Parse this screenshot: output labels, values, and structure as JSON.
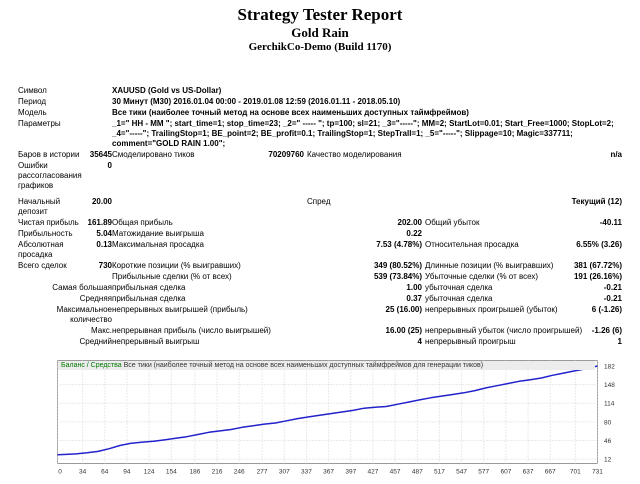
{
  "header": {
    "title": "Strategy Tester Report",
    "ea_name": "Gold Rain",
    "server": "GerchikCo-Demo (Build 1170)"
  },
  "info": {
    "rows": [
      {
        "label": "Символ",
        "value": "XAUUSD (Gold vs US-Dollar)"
      },
      {
        "label": "Период",
        "value": "30 Минут (M30) 2016.01.04 00:00 - 2019.01.08 12:59 (2016.01.11 - 2018.05.10)"
      },
      {
        "label": "Модель",
        "value": "Все тики (наиболее точный метод на основе всех наименьших доступных таймфреймов)"
      },
      {
        "label": "Параметры",
        "value": "_1=\" НН - ММ \"; start_time=1; stop_time=23; _2=\" ----- \"; tp=100; sl=21; _3=\"-----\"; MM=2; StartLot=0.01; Start_Free=1000; StopLot=2; _4=\"-----\"; TrailingStop=1; BE_point=2; BE_profit=0.1; TrailingStop=1; StepTrall=1; _5=\"-----\"; Slippage=10; Magic=337711; comment=\"GOLD RAIN 1.00\";"
      }
    ],
    "bars": {
      "label": "Баров в истории",
      "value": "35645"
    },
    "ticks": {
      "label": "Смоделировано тиков",
      "value": "70209760"
    },
    "quality": {
      "label": "Качество моделирования",
      "value": "n/a"
    },
    "errors": {
      "label": "Ошибки рассогласования графиков",
      "value": "0"
    }
  },
  "stats": {
    "rows": [
      {
        "l1": "Начальный депозит",
        "v1": "20.00",
        "l2": "",
        "v2": "",
        "l3": "Спред",
        "v3": "Текущий (12)"
      },
      {
        "l1": "Чистая прибыль",
        "v1": "161.89",
        "l2": "Общая прибыль",
        "v2": "202.00",
        "l3": "Общий убыток",
        "v3": "-40.11"
      },
      {
        "l1": "Прибыльность",
        "v1": "5.04",
        "l2": "Матожидание выигрыша",
        "v2": "0.22",
        "l3": "",
        "v3": ""
      },
      {
        "l1": "Абсолютная просадка",
        "v1": "0.13",
        "l2": "Максимальная просадка",
        "v2": "7.53 (4.78%)",
        "l3": "Относительная просадка",
        "v3": "6.55% (3.26)"
      },
      {
        "l1": "Всего сделок",
        "v1": "730",
        "l2": "Короткие позиции (% выигравших)",
        "v2": "349 (80.52%)",
        "l3": "Длинные позиции (% выигравших)",
        "v3": "381 (67.72%)"
      },
      {
        "l1": "",
        "v1": "",
        "l2": "Прибыльные сделки (% от всех)",
        "v2": "539 (73.84%)",
        "l3": "Убыточные сделки (% от всех)",
        "v3": "191 (26.16%)"
      },
      {
        "l1": "Самая большая",
        "v1": "",
        "l2": "прибыльная сделка",
        "v2": "1.00",
        "l3": "убыточная сделка",
        "v3": "-0.21"
      },
      {
        "l1": "Средняя",
        "v1": "",
        "l2": "прибыльная сделка",
        "v2": "0.37",
        "l3": "убыточная сделка",
        "v3": "-0.21"
      },
      {
        "l1": "Максимальное количество",
        "v1": "",
        "l2": "непрерывных выигрышей (прибыль)",
        "v2": "25 (16.00)",
        "l3": "непрерывных проигрышей (убыток)",
        "v3": "6 (-1.26)"
      },
      {
        "l1": "Макс.",
        "v1": "",
        "l2": "непрерывная прибыль (число выигрышей)",
        "v2": "16.00 (25)",
        "l3": "непрерывный убыток (число проигрышей)",
        "v3": "-1.26 (6)"
      },
      {
        "l1": "Средний",
        "v1": "",
        "l2": "непрерывный выигрыш",
        "v2": "4",
        "l3": "непрерывный проигрыш",
        "v3": "1"
      }
    ]
  },
  "chart_data": {
    "type": "line",
    "title": "Баланс / Средства",
    "subtitle": "Все тики (наиболее точный метод на основе всех наименьших доступных таймфреймов для генерации тиков)",
    "legend_position": "top-left",
    "grid": true,
    "xlim": [
      0,
      731
    ],
    "ylim": [
      4,
      192
    ],
    "x_ticks": [
      0,
      34,
      64,
      94,
      124,
      154,
      186,
      216,
      246,
      277,
      307,
      337,
      367,
      397,
      427,
      457,
      487,
      517,
      547,
      577,
      607,
      637,
      667,
      701,
      731
    ],
    "y_ticks": [
      182,
      148,
      114,
      80,
      46,
      12
    ],
    "series": [
      {
        "name": "Баланс",
        "color": "#2222cc",
        "points": [
          [
            0,
            20
          ],
          [
            12,
            20.6
          ],
          [
            25,
            21.5
          ],
          [
            40,
            23.5
          ],
          [
            55,
            26
          ],
          [
            70,
            31
          ],
          [
            85,
            37
          ],
          [
            100,
            41
          ],
          [
            115,
            43
          ],
          [
            130,
            44.5
          ],
          [
            145,
            47
          ],
          [
            160,
            50
          ],
          [
            175,
            53
          ],
          [
            190,
            57
          ],
          [
            205,
            61
          ],
          [
            220,
            63.5
          ],
          [
            235,
            66
          ],
          [
            250,
            70
          ],
          [
            265,
            73
          ],
          [
            280,
            76
          ],
          [
            295,
            78
          ],
          [
            310,
            82
          ],
          [
            325,
            86
          ],
          [
            340,
            89
          ],
          [
            355,
            92
          ],
          [
            370,
            95
          ],
          [
            385,
            98
          ],
          [
            400,
            101
          ],
          [
            415,
            105
          ],
          [
            430,
            106.5
          ],
          [
            445,
            108
          ],
          [
            460,
            112
          ],
          [
            475,
            116
          ],
          [
            490,
            120
          ],
          [
            505,
            124
          ],
          [
            520,
            127
          ],
          [
            535,
            130
          ],
          [
            550,
            133
          ],
          [
            565,
            137
          ],
          [
            580,
            142
          ],
          [
            595,
            146
          ],
          [
            610,
            150
          ],
          [
            625,
            154
          ],
          [
            640,
            157
          ],
          [
            655,
            160
          ],
          [
            670,
            165
          ],
          [
            685,
            169
          ],
          [
            700,
            173
          ],
          [
            712,
            176
          ],
          [
            722,
            179
          ],
          [
            731,
            182
          ]
        ]
      }
    ]
  }
}
